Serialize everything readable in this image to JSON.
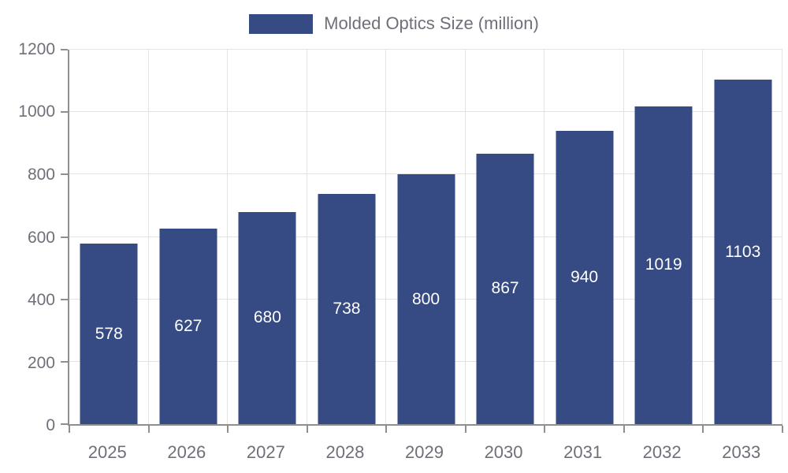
{
  "legend": {
    "label": "Molded Optics Size (million)"
  },
  "chart_data": {
    "type": "bar",
    "title": "Molded Optics Size (million)",
    "series_name": "Molded Optics Size (million)",
    "categories": [
      "2025",
      "2026",
      "2027",
      "2028",
      "2029",
      "2030",
      "2031",
      "2032",
      "2033"
    ],
    "values": [
      578,
      627,
      680,
      738,
      800,
      867,
      940,
      1019,
      1103
    ],
    "xlabel": "",
    "ylabel": "",
    "ylim": [
      0,
      1200
    ],
    "yticks": [
      0,
      200,
      400,
      600,
      800,
      1000,
      1200
    ],
    "grid": true,
    "legend_position": "top-center",
    "value_label_position": "inside-center"
  },
  "colors": {
    "bar": "#364A84",
    "value_label": "#FFFFFF",
    "axis_line": "#8F8F8F",
    "gridline": "#E3E3E3",
    "tick_label": "#6E7079",
    "legend_text": "#6E7079",
    "background": "#FFFFFF"
  }
}
